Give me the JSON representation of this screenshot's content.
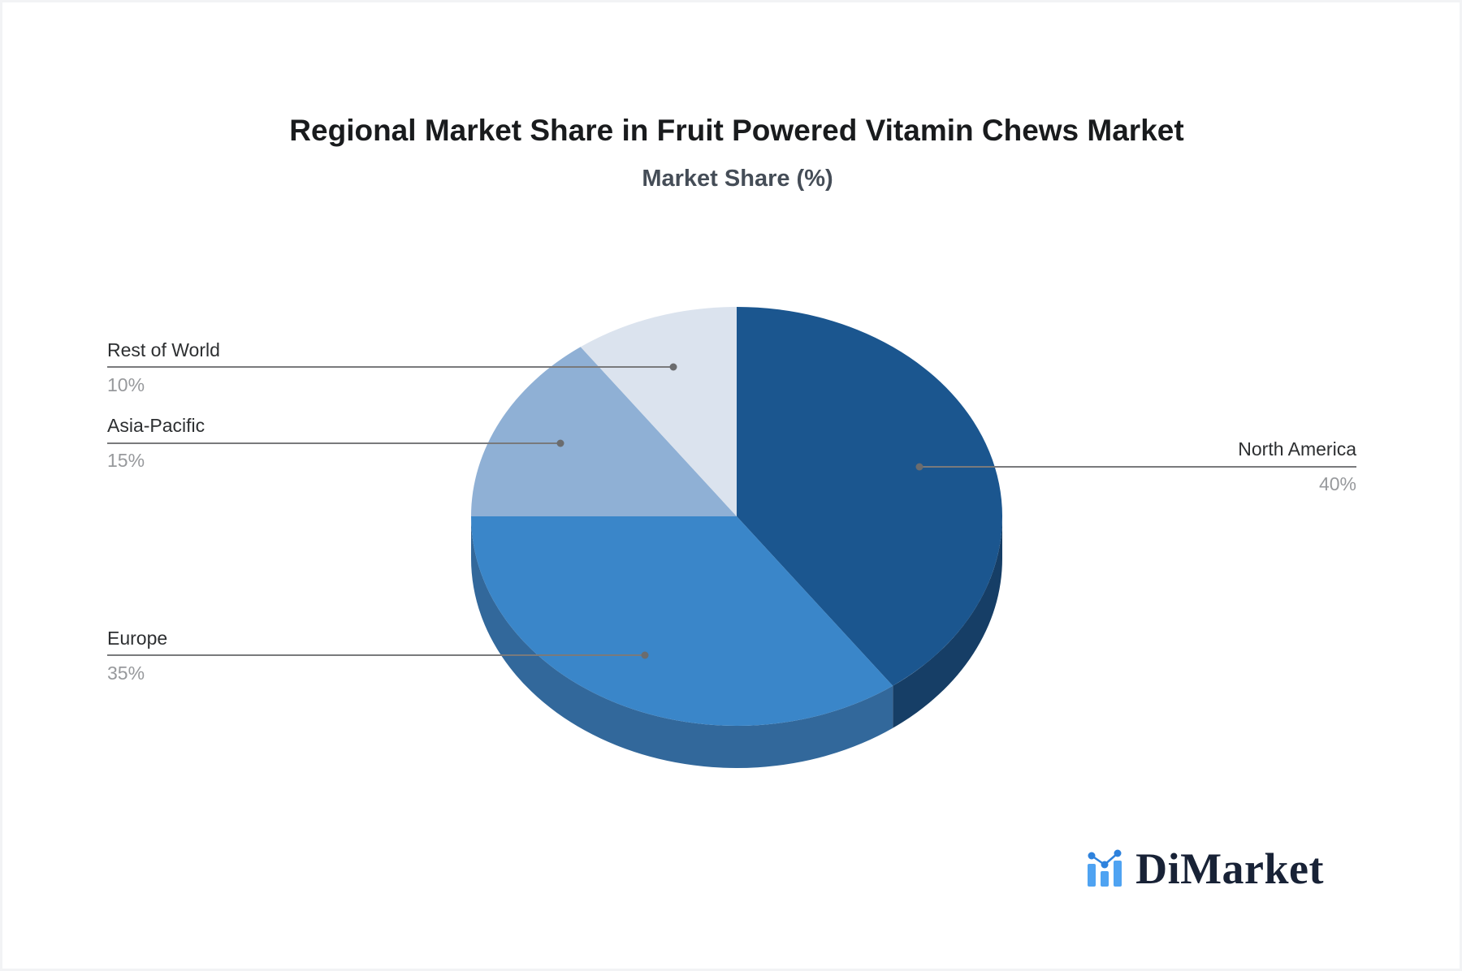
{
  "page": {
    "background": "#ffffff",
    "border_color": "#f2f3f5"
  },
  "header": {
    "title": "Regional Market Share in Fruit Powered Vitamin Chews Market",
    "subtitle": "Market Share (%)"
  },
  "chart_data": {
    "type": "pie",
    "title": "Regional Market Share in Fruit Powered Vitamin Chews Market",
    "subtitle": "Market Share (%)",
    "unit": "%",
    "direction": "clockwise",
    "start_angle_deg": 0,
    "effect": "3d-depth",
    "legend_position": "callout-labels",
    "slices": [
      {
        "label": "North America",
        "value": 40,
        "display": "40%",
        "color": "#1b568f",
        "side_color": "#163e66"
      },
      {
        "label": "Europe",
        "value": 35,
        "display": "35%",
        "color": "#3a86c9",
        "side_color": "#32689b"
      },
      {
        "label": "Asia-Pacific",
        "value": 15,
        "display": "15%",
        "color": "#8fb0d5",
        "side_color": "#7494b8"
      },
      {
        "label": "Rest of World",
        "value": 10,
        "display": "10%",
        "color": "#dbe3ee",
        "side_color": "#b9c4d4"
      }
    ]
  },
  "callouts": {
    "line_color": "#797a7c",
    "dot_color": "#6b6c6e",
    "label_color": "#2d2f31",
    "value_color": "#97999c"
  },
  "brand": {
    "name": "DiMarket",
    "icon": "mini-bar-line-chart-icon",
    "text_color": "#182236",
    "bar_color": "#4fa3f2",
    "accent_color": "#2e82dd"
  }
}
